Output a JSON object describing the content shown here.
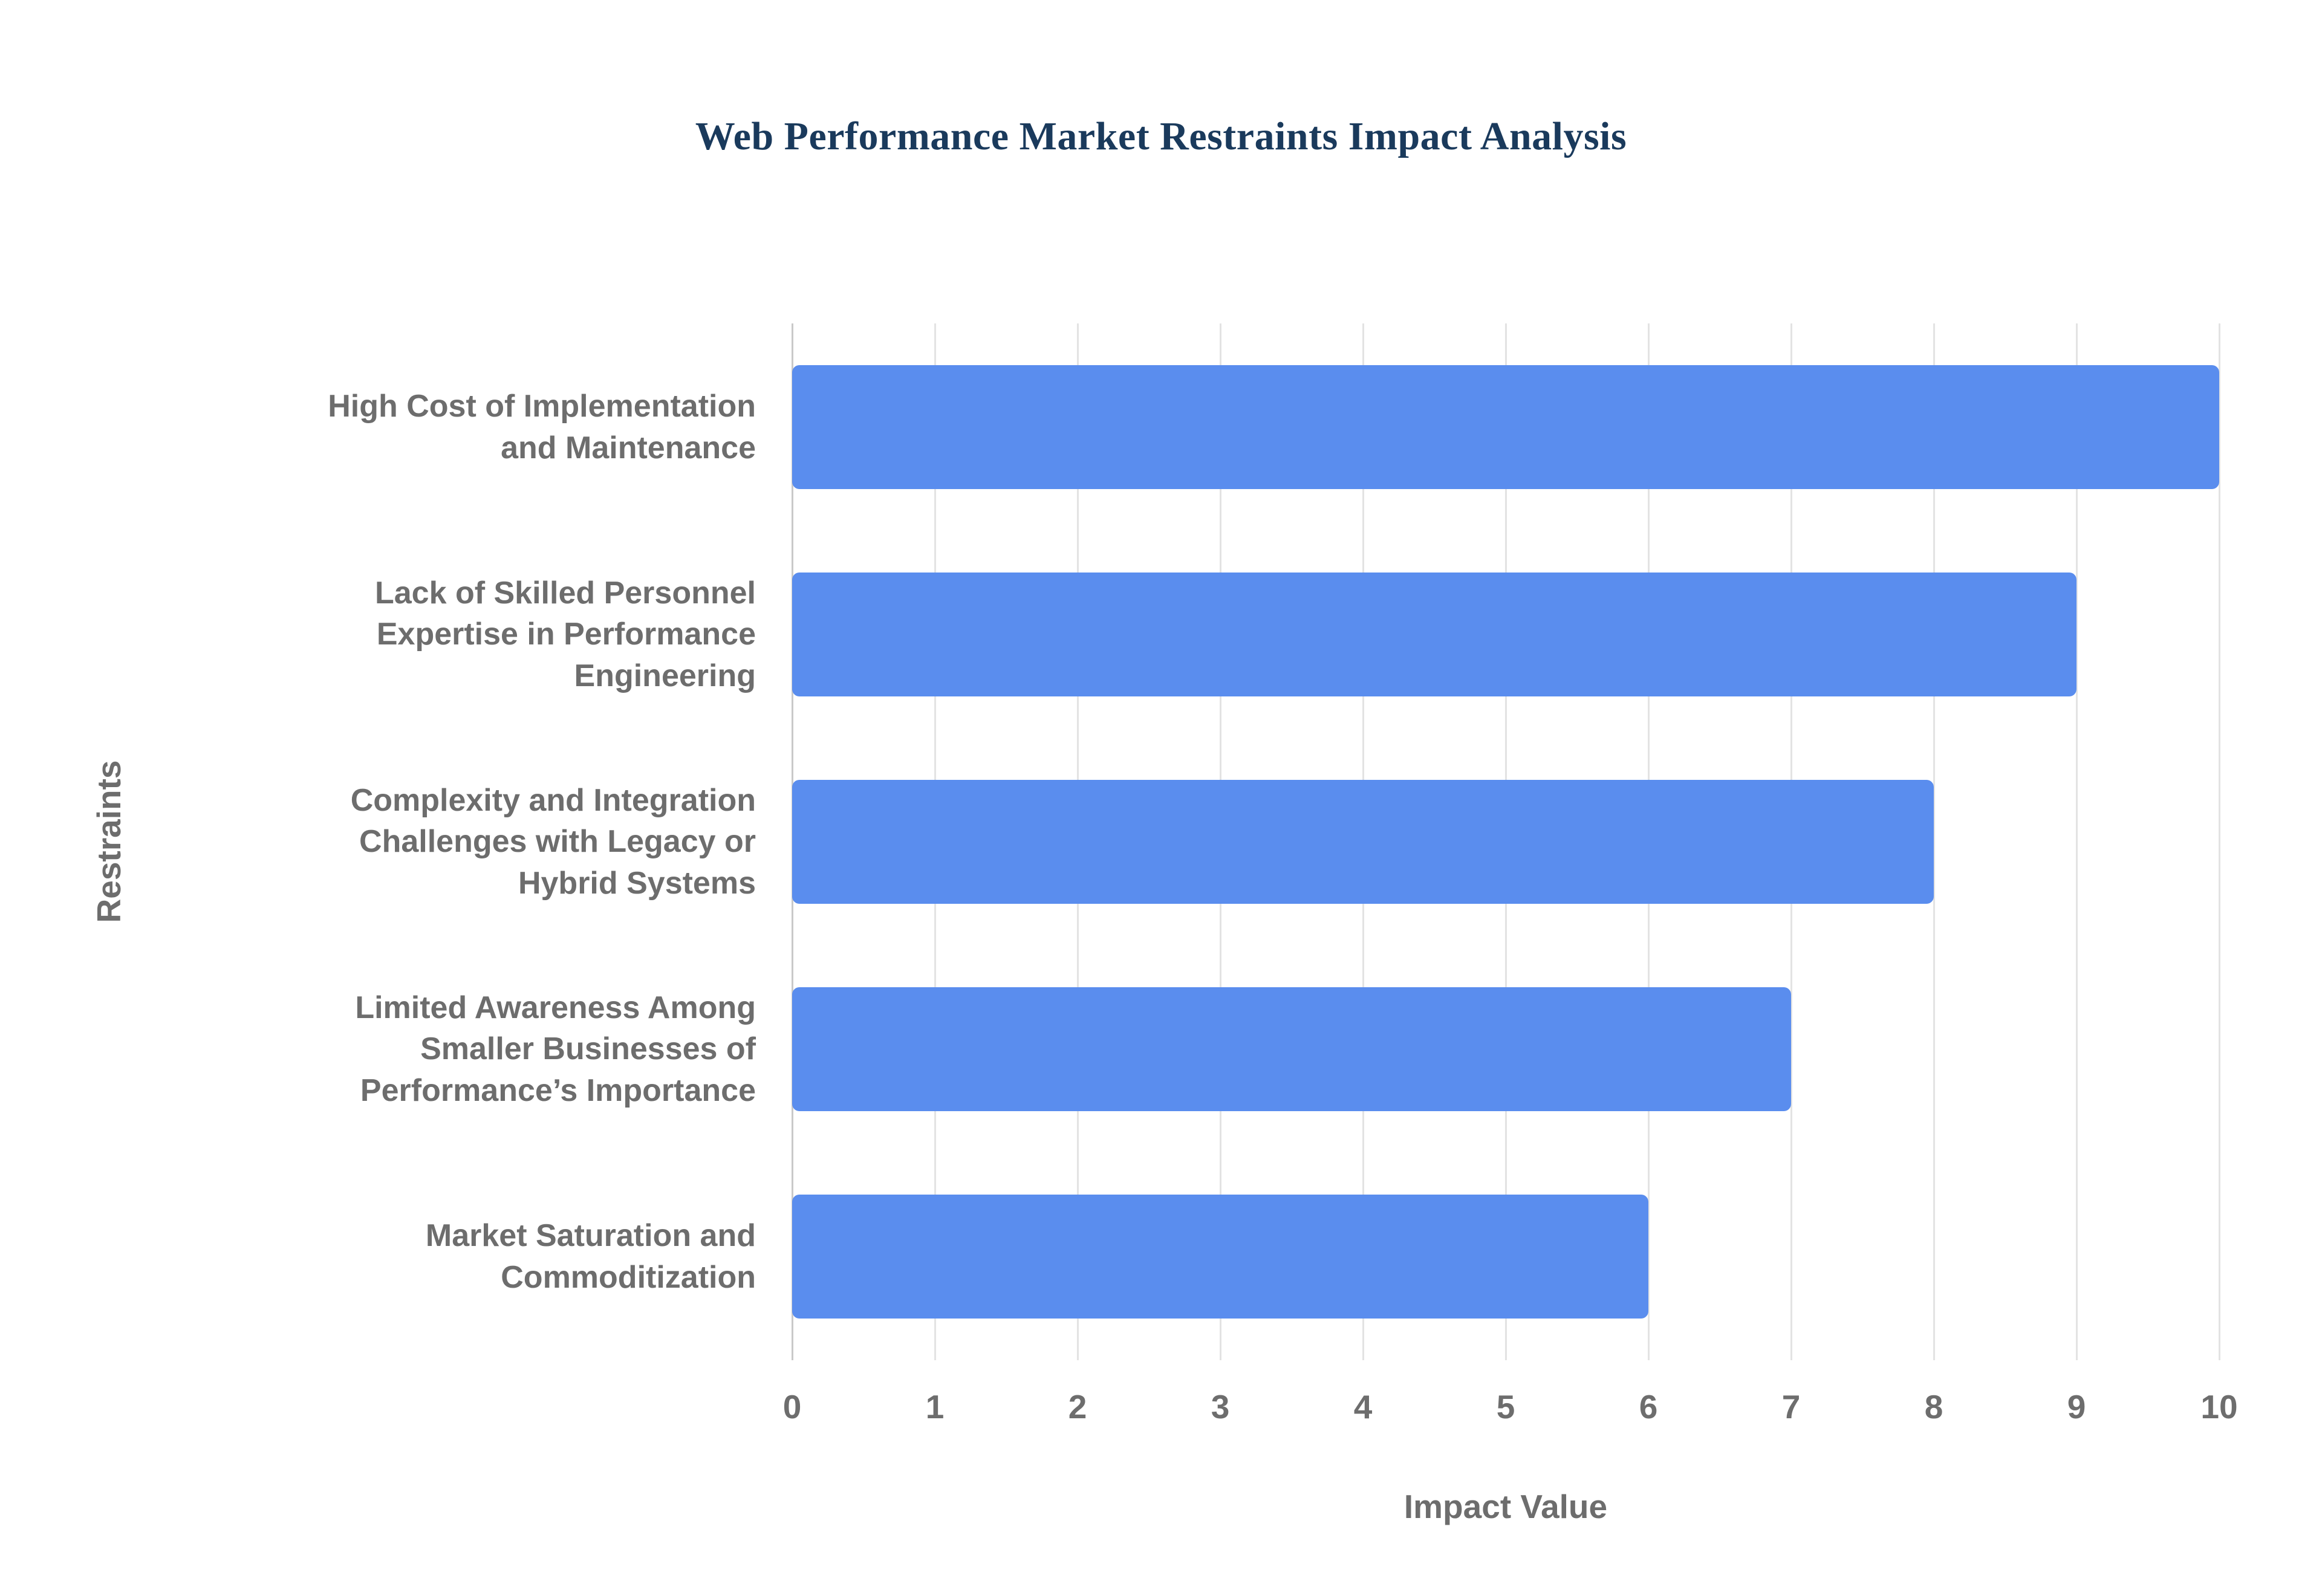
{
  "title": "Web Performance Market Restraints Impact Analysis",
  "chart_data": {
    "type": "bar",
    "orientation": "horizontal",
    "title": "Web Performance Market Restraints Impact Analysis",
    "categories": [
      "High Cost of Implementation and Maintenance",
      "Lack of Skilled Personnel Expertise in Performance Engineering",
      "Complexity and Integration Challenges with Legacy or Hybrid Systems",
      "Limited Awareness Among Smaller Businesses of Performance’s Importance",
      "Market Saturation and Commoditization"
    ],
    "values": [
      10,
      9,
      8,
      7,
      6
    ],
    "xlabel": "Impact Value",
    "ylabel": "Restraints",
    "xlim": [
      0,
      10
    ],
    "xticks": [
      0,
      1,
      2,
      3,
      4,
      5,
      6,
      7,
      8,
      9,
      10
    ],
    "grid": true,
    "legend": "none",
    "colors": {
      "bar": "#5A8DEE",
      "title": "#1A3A5C",
      "labels": "#6D6D6D",
      "gridline": "#E3E3E3",
      "axisline": "#C9C9C9",
      "background": "#FFFFFF"
    }
  }
}
